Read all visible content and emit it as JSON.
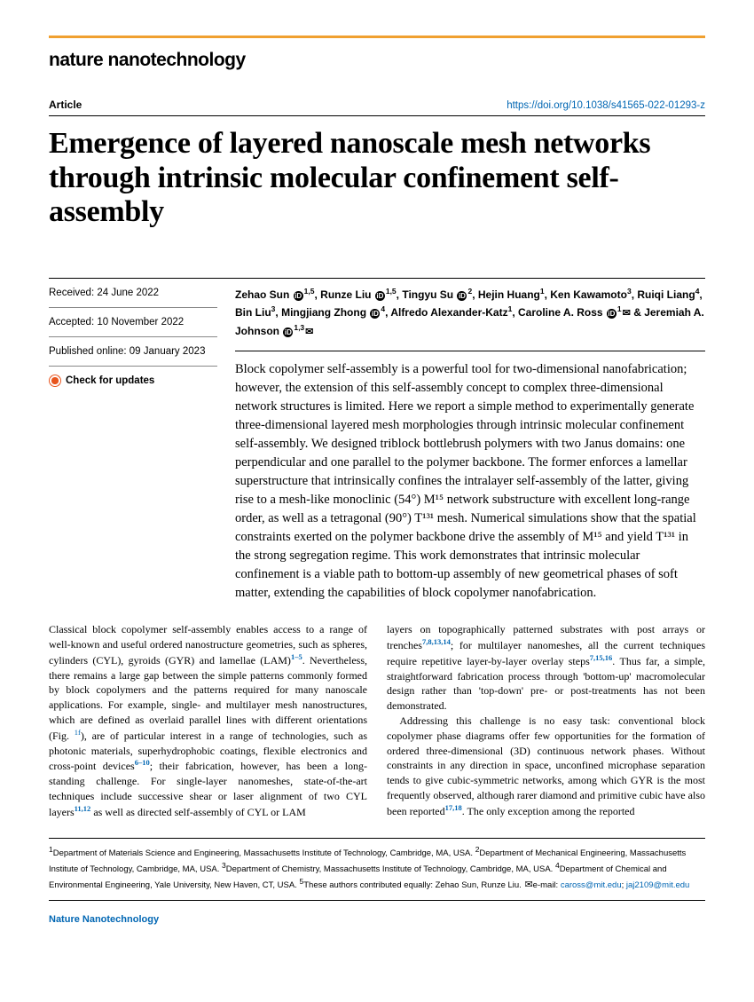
{
  "journal": "nature nanotechnology",
  "article_label": "Article",
  "doi": "https://doi.org/10.1038/s41565-022-01293-z",
  "title": "Emergence of layered nanoscale mesh networks through intrinsic molecular confinement self-assembly",
  "meta": {
    "received": "Received: 24 June 2022",
    "accepted": "Accepted: 10 November 2022",
    "published": "Published online: 09 January 2023",
    "check_updates": "Check for updates"
  },
  "authors_html": "Zehao Sun <span class='orcid'>iD</span><sup>1,5</sup>, Runze Liu <span class='orcid'>iD</span><sup>1,5</sup>, Tingyu Su <span class='orcid'>iD</span><sup>2</sup>, Hejin Huang<sup>1</sup>, Ken Kawamoto<sup>3</sup>, Ruiqi Liang<sup>4</sup>, Bin Liu<sup>3</sup>, Mingjiang Zhong <span class='orcid'>iD</span><sup>4</sup>, Alfredo Alexander-Katz<sup>1</sup>, Caroline A. Ross <span class='orcid'>iD</span><sup>1</sup><span class='env-icon'></span> & Jeremiah A. Johnson <span class='orcid'>iD</span><sup>1,3</sup><span class='env-icon'></span>",
  "abstract": "Block copolymer self-assembly is a powerful tool for two-dimensional nanofabrication; however, the extension of this self-assembly concept to complex three-dimensional network structures is limited. Here we report a simple method to experimentally generate three-dimensional layered mesh morphologies through intrinsic molecular confinement self-assembly. We designed triblock bottlebrush polymers with two Janus domains: one perpendicular and one parallel to the polymer backbone. The former enforces a lamellar superstructure that intrinsically confines the intralayer self-assembly of the latter, giving rise to a mesh-like monoclinic (54°) M¹⁵ network substructure with excellent long-range order, as well as a tetragonal (90°) T¹³¹ mesh. Numerical simulations show that the spatial constraints exerted on the polymer backbone drive the assembly of M¹⁵ and yield T¹³¹ in the strong segregation regime. This work demonstrates that intrinsic molecular confinement is a viable path to bottom-up assembly of new geometrical phases of soft matter, extending the capabilities of block copolymer nanofabrication.",
  "body": {
    "col1_p1": "Classical block copolymer self-assembly enables access to a range of well-known and useful ordered nanostructure geometries, such as spheres, cylinders (CYL), gyroids (GYR) and lamellae (LAM)<sup class='ref-sup'>1–5</sup>. Nevertheless, there remains a large gap between the simple patterns commonly formed by block copolymers and the patterns required for many nanoscale applications. For example, single- and multilayer mesh nanostructures, which are defined as overlaid parallel lines with different orientations (Fig. <span class='ref-sup'>1f</span>), are of particular interest in a range of technologies, such as photonic materials, superhydrophobic coatings, flexible electronics and cross-point devices<sup class='ref-sup'>6–10</sup>; their fabrication, however, has been a long-standing challenge. For single-layer nanomeshes, state-of-the-art techniques include successive shear or laser alignment of two CYL layers<sup class='ref-sup'>11,12</sup> as well as directed self-assembly of CYL or LAM",
    "col2_p1": "layers on topographically patterned substrates with post arrays or trenches<sup class='ref-sup'>7,8,13,14</sup>; for multilayer nanomeshes, all the current techniques require repetitive layer-by-layer overlay steps<sup class='ref-sup'>7,15,16</sup>. Thus far, a simple, straightforward fabrication process through 'bottom-up' macromolecular design rather than 'top-down' pre- or post-treatments has not been demonstrated.",
    "col2_p2": "Addressing this challenge is no easy task: conventional block copolymer phase diagrams offer few opportunities for the formation of ordered three-dimensional (3D) continuous network phases. Without constraints in any direction in space, unconfined microphase separation tends to give cubic-symmetric networks, among which GYR is the most frequently observed, although rarer diamond and primitive cubic have also been reported<sup class='ref-sup'>17,18</sup>. The only exception among the reported"
  },
  "affiliations_html": "<sup class='normal'>1</sup>Department of Materials Science and Engineering, Massachusetts Institute of Technology, Cambridge, MA, USA. <sup class='normal'>2</sup>Department of Mechanical Engineering, Massachusetts Institute of Technology, Cambridge, MA, USA. <sup class='normal'>3</sup>Department of Chemistry, Massachusetts Institute of Technology, Cambridge, MA, USA. <sup class='normal'>4</sup>Department of Chemical and Environmental Engineering, Yale University, New Haven, CT, USA. <sup class='normal'>5</sup>These authors contributed equally: Zehao Sun, Runze Liu. <span class='env-icon'></span>e-mail: <span class='email-link'>caross@mit.edu</span>; <span class='email-link'>jaj2109@mit.edu</span>",
  "footer": "Nature Nanotechnology"
}
